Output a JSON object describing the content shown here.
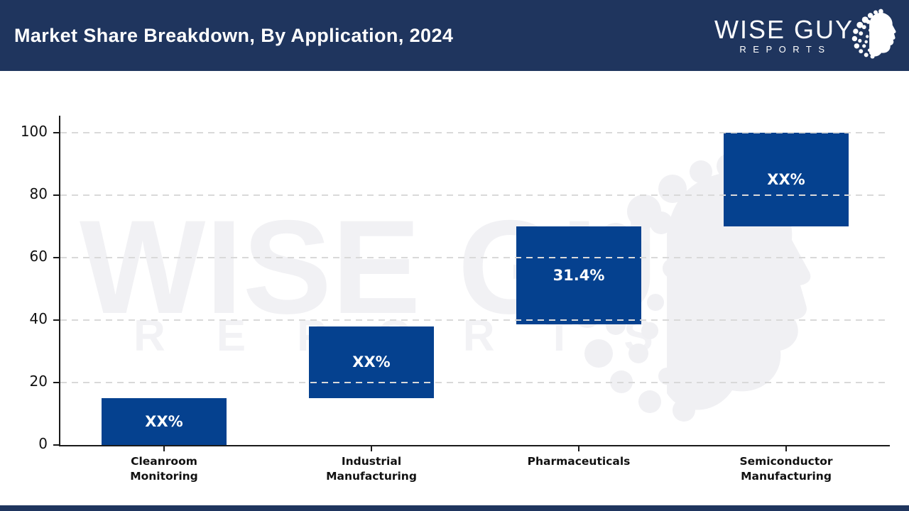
{
  "header": {
    "title": "Market Share Breakdown, By Application, 2024",
    "brand_line1": "WISE GUY",
    "brand_line2": "REPORTS"
  },
  "watermark": {
    "line1": "WISE GUY",
    "line2": "REPORTS"
  },
  "footer": {},
  "colors": {
    "header_bg": "#1f355e",
    "footer_bg": "#1f355e",
    "bar": "#05418f",
    "grid": "#d9d9d9",
    "axis": "#1a1a1a",
    "watermark": "#f0f0f3"
  },
  "chart_data": {
    "type": "bar",
    "variant": "floating-waterfall",
    "title": "Market Share Breakdown, By Application, 2024",
    "categories": [
      "Cleanroom Monitoring",
      "Industrial Manufacturing",
      "Pharmaceuticals",
      "Semiconductor Manufacturing"
    ],
    "category_lines": [
      [
        "Cleanroom",
        "Monitoring"
      ],
      [
        "Industrial",
        "Manufacturing"
      ],
      [
        "Pharmaceuticals"
      ],
      [
        "Semiconductor",
        "Manufacturing"
      ]
    ],
    "bars": [
      {
        "category": "Cleanroom Monitoring",
        "label": "XX%",
        "base": 0,
        "top": 15
      },
      {
        "category": "Industrial Manufacturing",
        "label": "XX%",
        "base": 15,
        "top": 38
      },
      {
        "category": "Pharmaceuticals",
        "label": "31.4%",
        "base": 38.6,
        "top": 70
      },
      {
        "category": "Semiconductor Manufacturing",
        "label": "XX%",
        "base": 70,
        "top": 100
      }
    ],
    "ylabel": "",
    "xlabel": "",
    "ylim": [
      0,
      100
    ],
    "yticks": [
      0,
      20,
      40,
      60,
      80,
      100
    ],
    "grid": "dashed-horizontal-over-bars",
    "legend": "none",
    "bar_color": "#05418f",
    "bar_label_color": "#ffffff"
  }
}
